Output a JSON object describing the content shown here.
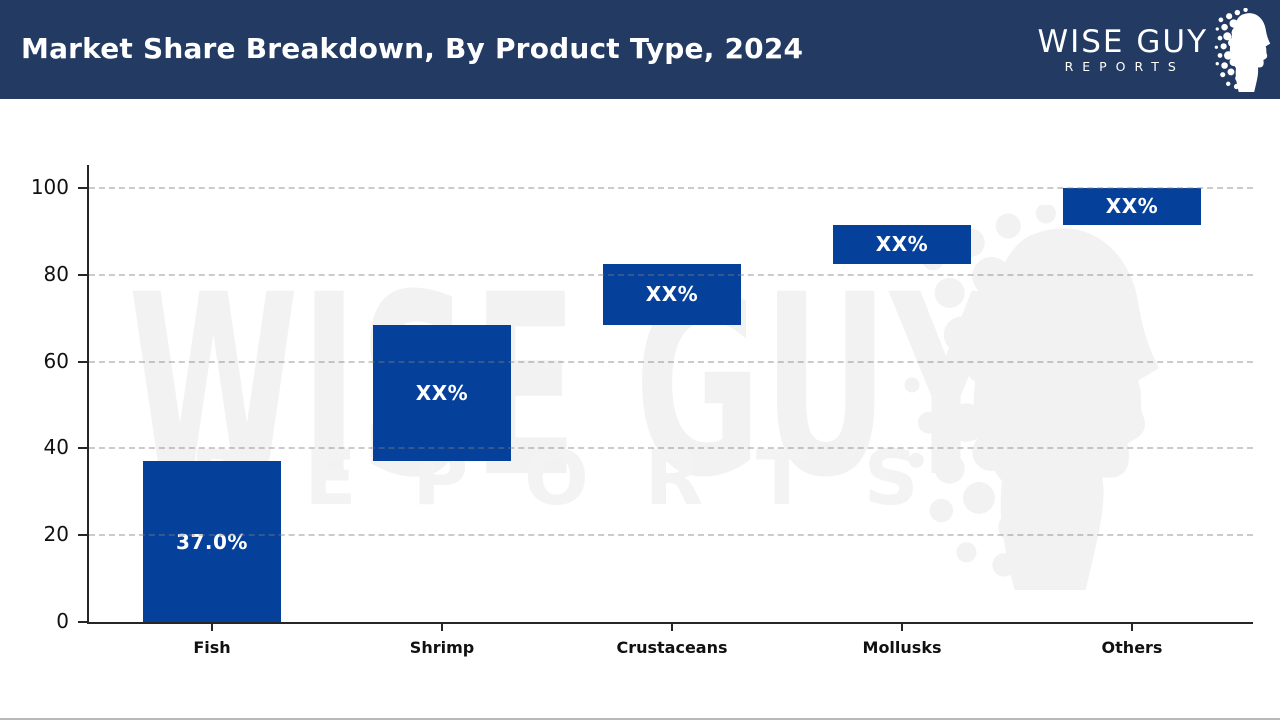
{
  "header": {
    "logo": {
      "brand": "WISE GUY",
      "subtitle": "REPORTS"
    }
  },
  "watermark": {
    "line1": "WISE GUY",
    "line2": "REPORTS"
  },
  "chart_data": {
    "type": "bar",
    "subtype": "floating-stacked-progression",
    "title": "Market Share Breakdown, By Product Type, 2024",
    "categories": [
      "Fish",
      "Shrimp",
      "Crustaceans",
      "Mollusks",
      "Others"
    ],
    "segments": [
      [
        0,
        37
      ],
      [
        37,
        68.5
      ],
      [
        68.5,
        82.5
      ],
      [
        82.5,
        91.5
      ],
      [
        91.5,
        100
      ]
    ],
    "values": [
      37,
      31.5,
      14,
      9,
      8.5
    ],
    "bar_labels": [
      "37.0%",
      "XX%",
      "XX%",
      "XX%",
      "XX%"
    ],
    "y_ticks": [
      0,
      20,
      40,
      60,
      80,
      100
    ],
    "ylim": [
      0,
      106
    ],
    "xlabel": "",
    "ylabel": "",
    "grid": true,
    "grid_style": "dashed",
    "legend": "none",
    "bar_color": "#05409b",
    "bar_label_color": "#ffffff",
    "header_color": "#233a63"
  }
}
